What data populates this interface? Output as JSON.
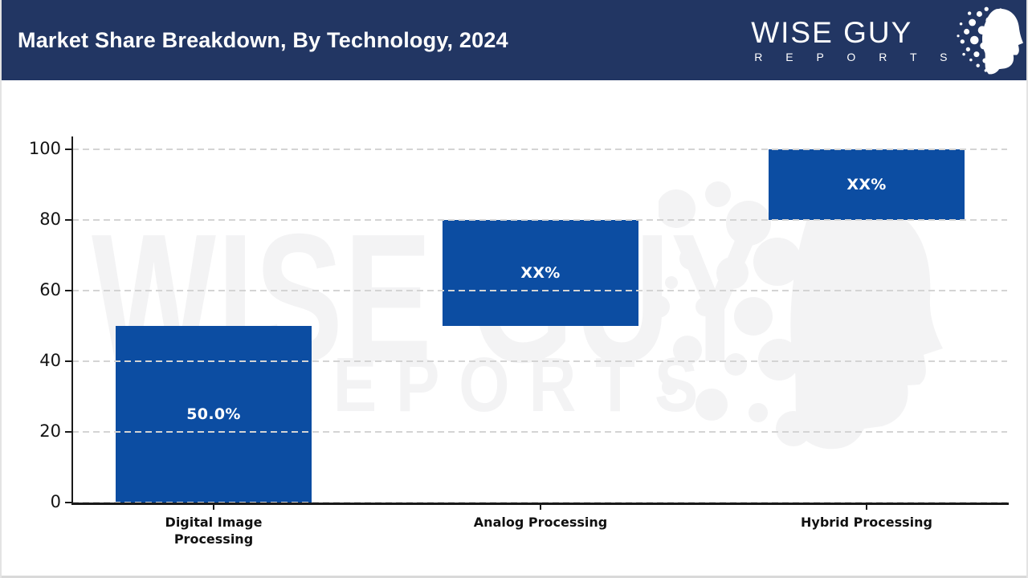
{
  "header": {
    "title": "Market Share Breakdown, By Technology, 2024",
    "bg_color": "#223663",
    "logo": {
      "line1": "WISE GUY",
      "line2": "R E P O R T S"
    }
  },
  "watermark": {
    "line1": "WISE GUY",
    "line2": "REPORTS"
  },
  "chart_data": {
    "type": "bar",
    "variant": "floating-range-bars",
    "title": "Market Share Breakdown, By Technology, 2024",
    "categories": [
      "Digital Image\nProcessing",
      "Analog Processing",
      "Hybrid Processing"
    ],
    "series": [
      {
        "name": "Market share (%)",
        "ranges": [
          [
            0,
            50
          ],
          [
            50,
            80
          ],
          [
            80,
            100
          ]
        ],
        "labels": [
          "50.0%",
          "XX%",
          "XX%"
        ]
      }
    ],
    "ylim": [
      0,
      100
    ],
    "yticks": [
      0,
      20,
      40,
      60,
      80,
      100
    ],
    "xlabel": "",
    "ylabel": "",
    "grid": {
      "axis": "y",
      "style": "dashed",
      "color": "#d4d4d4",
      "over_bars": true
    },
    "legend": null,
    "bar_color": "#0c4da2",
    "bar_label_color": "#ffffff",
    "axis_color": "#1a1a1a"
  }
}
